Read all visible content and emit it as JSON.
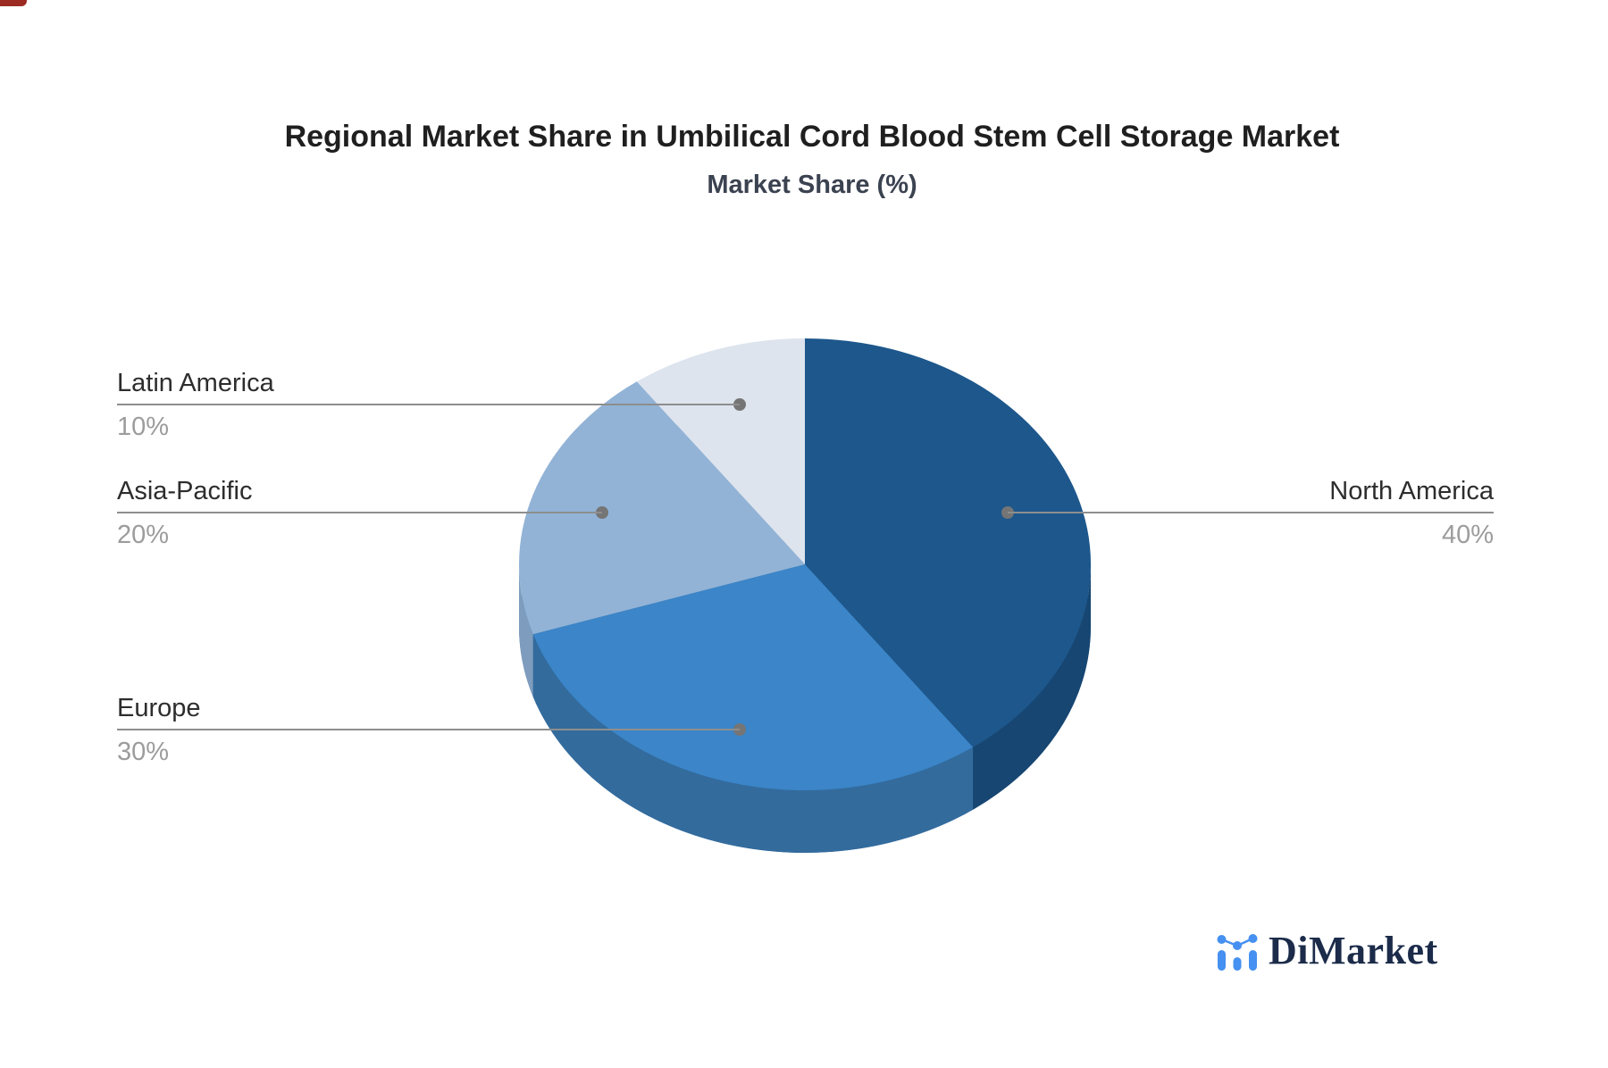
{
  "title": "Regional Market Share in Umbilical Cord Blood Stem Cell Storage Market",
  "subtitle": "Market Share (%)",
  "chart_data": {
    "type": "pie",
    "style": "3d",
    "title": "Regional Market Share in Umbilical Cord Blood Stem Cell Storage Market",
    "subtitle": "Market Share (%)",
    "unit": "%",
    "start_angle_deg": 0,
    "direction": "clockwise",
    "grid": false,
    "legend_position": "callout-labels",
    "slices": [
      {
        "label": "North America",
        "value": 40,
        "display": "40%",
        "color": "#1d578c",
        "side_color": "#174672",
        "edge_color": "#133e66"
      },
      {
        "label": "Europe",
        "value": 30,
        "display": "30%",
        "color": "#3b85c8",
        "side_color": "#336b9d",
        "edge_color": "#2a5d8c"
      },
      {
        "label": "Asia-Pacific",
        "value": 20,
        "display": "20%",
        "color": "#92b3d6",
        "side_color": "#7e9cbd",
        "edge_color": "#6e8cab"
      },
      {
        "label": "Latin America",
        "value": 10,
        "display": "10%",
        "color": "#dde4ee",
        "side_color": "#c2cdde",
        "edge_color": "#b0bccd"
      }
    ]
  },
  "callouts": {
    "latin_america": {
      "label": "Latin America",
      "value": "10%"
    },
    "asia_pacific": {
      "label": "Asia-Pacific",
      "value": "20%"
    },
    "europe": {
      "label": "Europe",
      "value": "30%"
    },
    "north_america": {
      "label": "North America",
      "value": "40%"
    }
  },
  "logo": {
    "text": "DiMarket",
    "icon": "bar-line-chart-icon"
  },
  "colors": {
    "accent_blue": "#4590f0",
    "logo_text": "#1b2b49",
    "callout_line": "#8e8e8e",
    "callout_dot": "#757575",
    "label_text": "#2d2d2d",
    "value_text": "#9c9c9c"
  }
}
